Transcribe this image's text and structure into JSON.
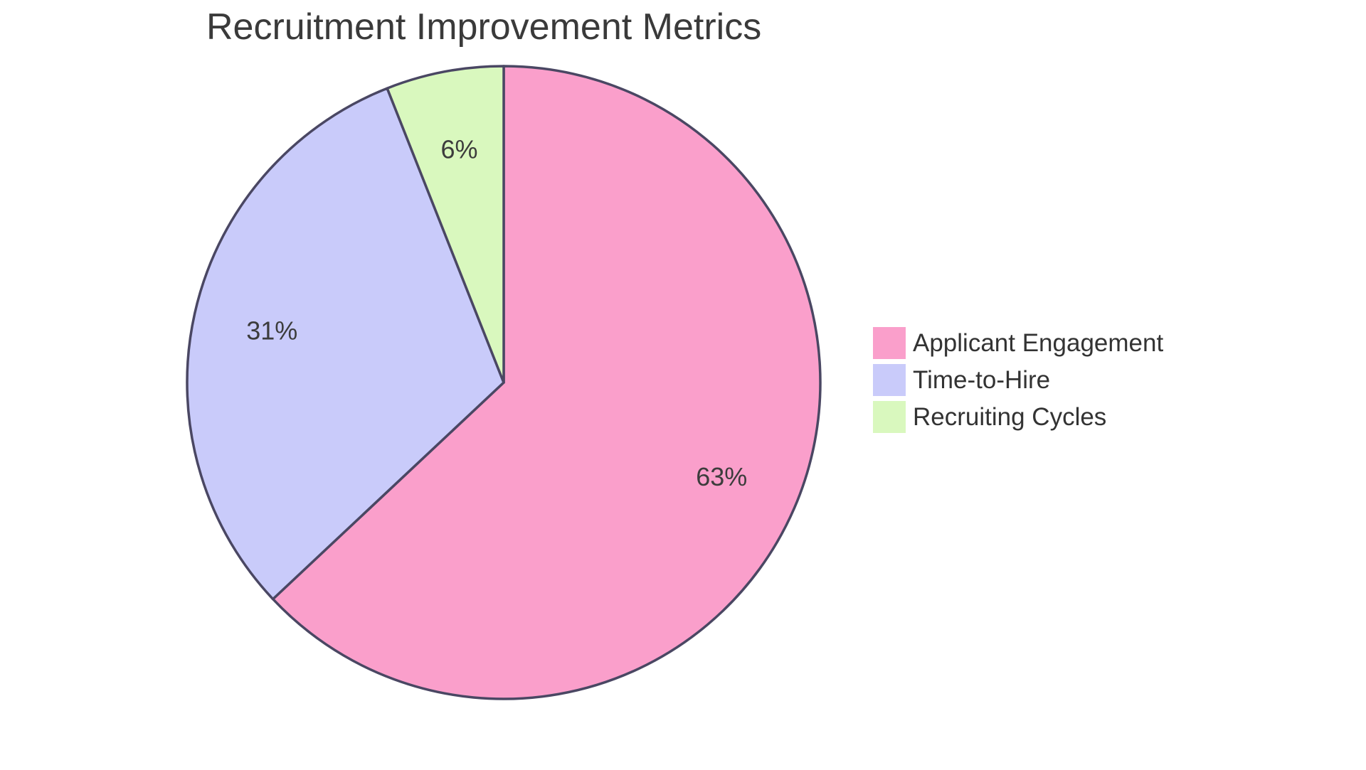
{
  "chart_data": {
    "type": "pie",
    "title": "Recruitment Improvement Metrics",
    "labels": [
      "Applicant Engagement",
      "Time-to-Hire",
      "Recruiting Cycles"
    ],
    "values": [
      63,
      31,
      6
    ],
    "percent_labels": [
      "63%",
      "31%",
      "6%"
    ],
    "colors": [
      "#FA9FCB",
      "#C9CBFA",
      "#D9F8BE"
    ],
    "slice_border_color": "#4A4763",
    "slice_border_width": 3.5,
    "start_angle": "12-oclock",
    "direction": "clockwise",
    "legend_position": "right",
    "percent_label_color": "#3c3c3c",
    "title_color": "#3a3a3a",
    "background_color": "#ffffff"
  },
  "legend": {
    "items": [
      {
        "label": "Applicant Engagement",
        "color": "#FA9FCB"
      },
      {
        "label": "Time-to-Hire",
        "color": "#C9CBFA"
      },
      {
        "label": "Recruiting Cycles",
        "color": "#D9F8BE"
      }
    ]
  }
}
